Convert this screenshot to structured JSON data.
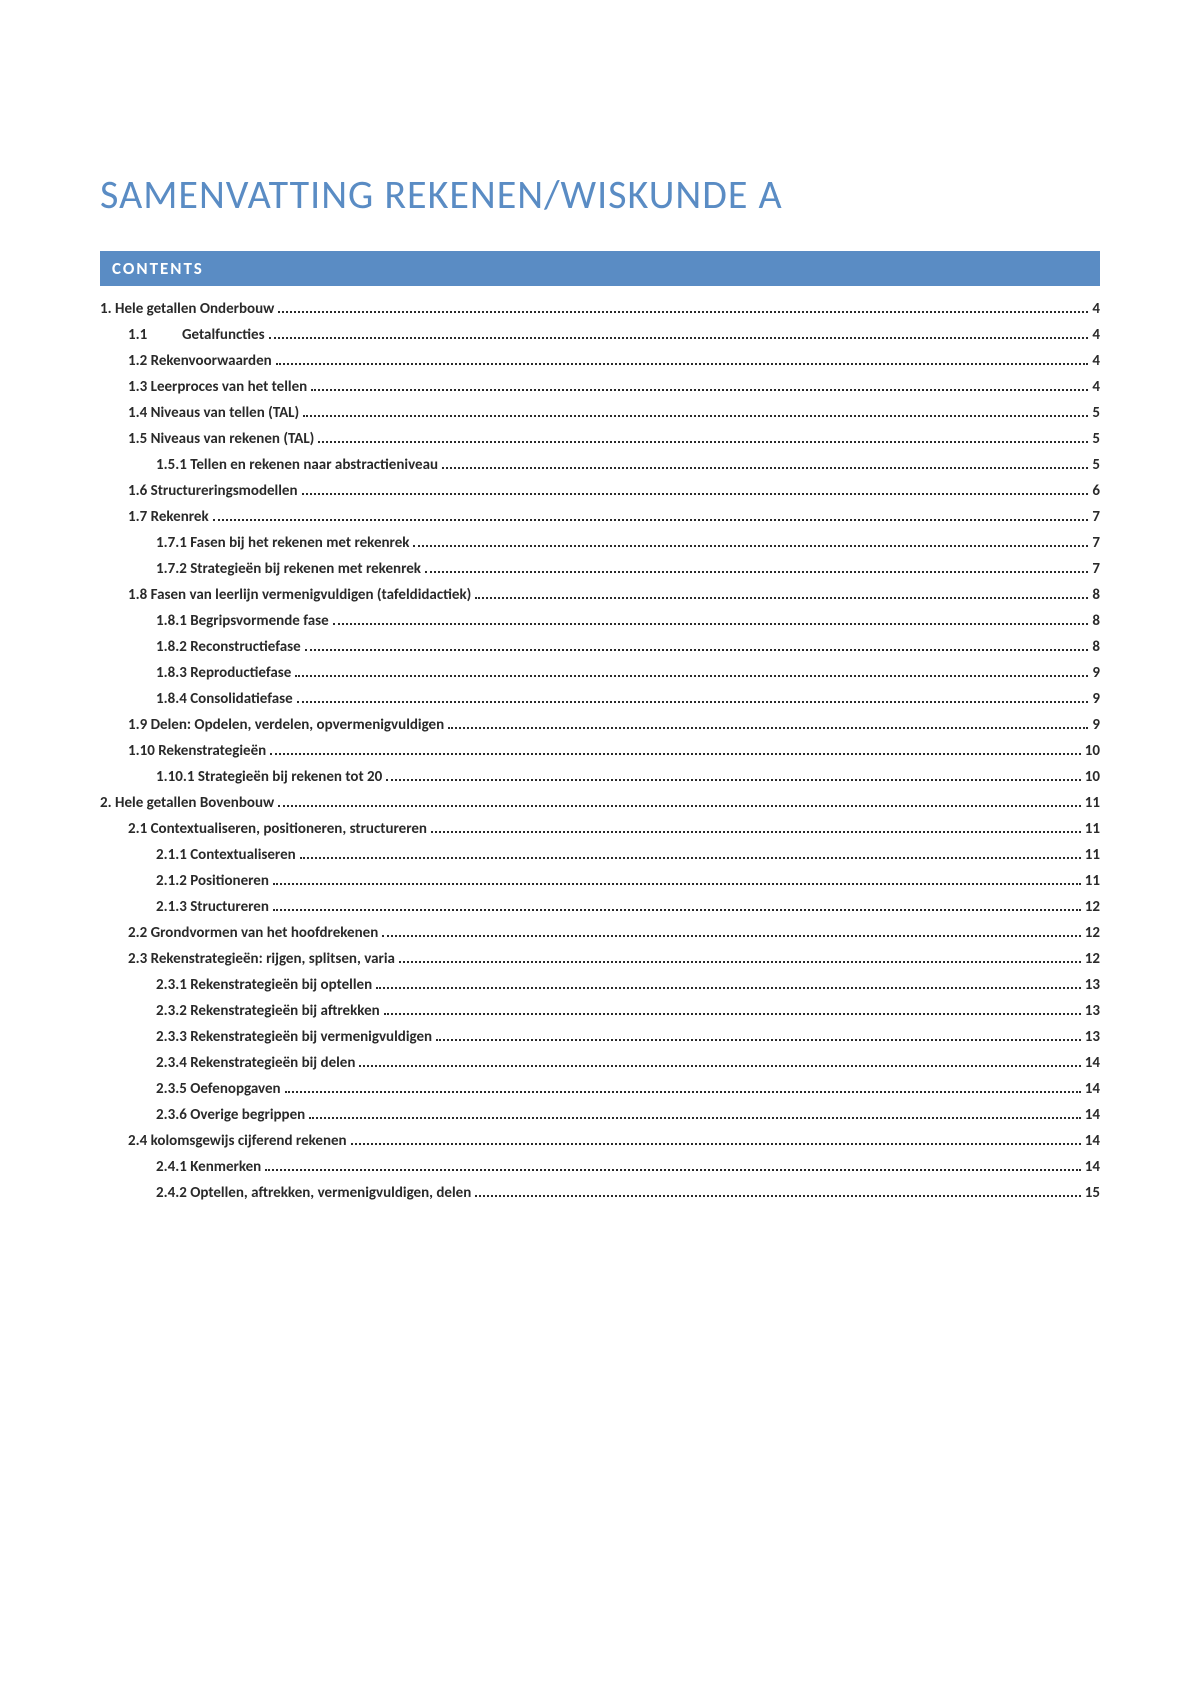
{
  "colors": {
    "title": "#5a8cc4",
    "header_bg": "#5a8cc4",
    "header_text": "#ffffff",
    "text": "#2a2a2a",
    "leader": "#2a2a2a"
  },
  "title": "SAMENVATTING REKENEN/WISKUNDE A",
  "contents_label": "CONTENTS",
  "toc": [
    {
      "level": 0,
      "label": "1. Hele getallen Onderbouw",
      "page": "4"
    },
    {
      "level": 1,
      "label_num": "1.1",
      "label_text": "Getalfuncties",
      "page": "4",
      "special": true
    },
    {
      "level": 1,
      "label": "1.2 Rekenvoorwaarden",
      "page": "4"
    },
    {
      "level": 1,
      "label": "1.3 Leerproces van het tellen",
      "page": "4"
    },
    {
      "level": 1,
      "label": "1.4 Niveaus van tellen (TAL)",
      "page": "5"
    },
    {
      "level": 1,
      "label": "1.5 Niveaus van rekenen (TAL)",
      "page": "5"
    },
    {
      "level": 2,
      "label": "1.5.1 Tellen en rekenen naar abstractieniveau",
      "page": "5"
    },
    {
      "level": 1,
      "label": "1.6 Structureringsmodellen",
      "page": "6"
    },
    {
      "level": 1,
      "label": "1.7 Rekenrek",
      "page": "7"
    },
    {
      "level": 2,
      "label": "1.7.1 Fasen bij het rekenen met rekenrek",
      "page": "7"
    },
    {
      "level": 2,
      "label": "1.7.2 Strategieën bij rekenen met rekenrek",
      "page": "7"
    },
    {
      "level": 1,
      "label": "1.8 Fasen van leerlijn vermenigvuldigen (tafeldidactiek)",
      "page": "8"
    },
    {
      "level": 2,
      "label": "1.8.1 Begripsvormende fase",
      "page": "8"
    },
    {
      "level": 2,
      "label": "1.8.2 Reconstructiefase",
      "page": "8"
    },
    {
      "level": 2,
      "label": "1.8.3 Reproductiefase",
      "page": "9"
    },
    {
      "level": 2,
      "label": "1.8.4 Consolidatiefase",
      "page": "9"
    },
    {
      "level": 1,
      "label": "1.9 Delen: Opdelen, verdelen, opvermenigvuldigen",
      "page": "9"
    },
    {
      "level": 1,
      "label": "1.10 Rekenstrategieën",
      "page": "10"
    },
    {
      "level": 2,
      "label": "1.10.1 Strategieën bij rekenen tot 20",
      "page": "10"
    },
    {
      "level": 0,
      "label": "2. Hele getallen Bovenbouw",
      "page": "11"
    },
    {
      "level": 1,
      "label": "2.1 Contextualiseren, positioneren, structureren",
      "page": "11"
    },
    {
      "level": 2,
      "label": "2.1.1 Contextualiseren",
      "page": "11"
    },
    {
      "level": 2,
      "label": "2.1.2 Positioneren",
      "page": "11"
    },
    {
      "level": 2,
      "label": "2.1.3 Structureren",
      "page": "12"
    },
    {
      "level": 1,
      "label": "2.2 Grondvormen van het hoofdrekenen",
      "page": "12"
    },
    {
      "level": 1,
      "label": "2.3 Rekenstrategieën: rijgen, splitsen, varia",
      "page": "12"
    },
    {
      "level": 2,
      "label": "2.3.1 Rekenstrategieën bij optellen",
      "page": "13"
    },
    {
      "level": 2,
      "label": "2.3.2 Rekenstrategieën bij aftrekken",
      "page": "13"
    },
    {
      "level": 2,
      "label": "2.3.3 Rekenstrategieën bij vermenigvuldigen",
      "page": "13"
    },
    {
      "level": 2,
      "label": "2.3.4 Rekenstrategieën bij delen",
      "page": "14"
    },
    {
      "level": 2,
      "label": "2.3.5 Oefenopgaven",
      "page": "14"
    },
    {
      "level": 2,
      "label": "2.3.6 Overige begrippen",
      "page": "14"
    },
    {
      "level": 1,
      "label": "2.4 kolomsgewijs cijferend rekenen",
      "page": "14"
    },
    {
      "level": 2,
      "label": "2.4.1 Kenmerken",
      "page": "14"
    },
    {
      "level": 2,
      "label": "2.4.2 Optellen, aftrekken, vermenigvuldigen, delen",
      "page": "15"
    }
  ]
}
